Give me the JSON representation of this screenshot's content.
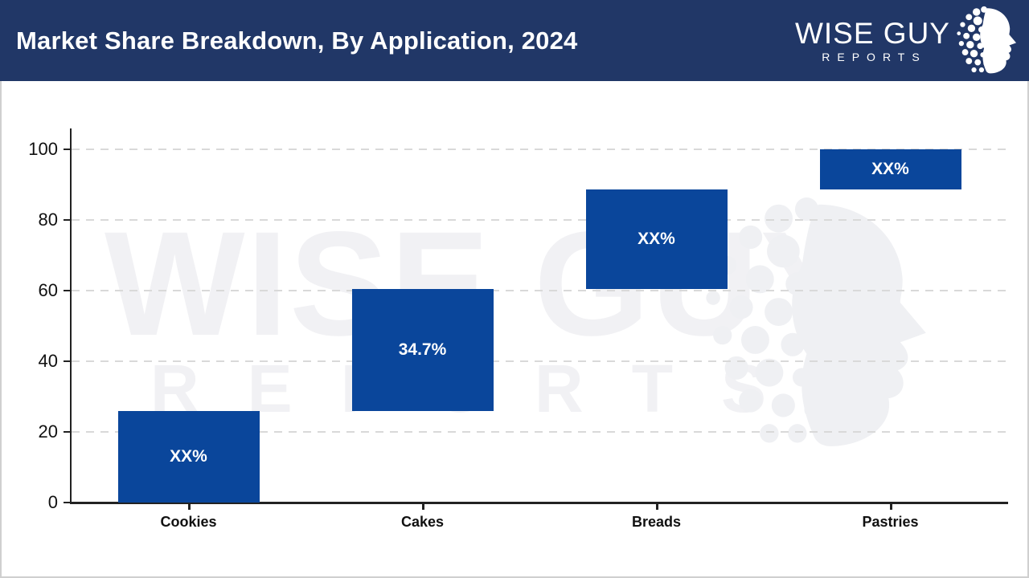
{
  "header": {
    "title": "Market Share Breakdown, By Application, 2024",
    "logo": {
      "line1": "WISE GUY",
      "line2": "REPORTS"
    }
  },
  "watermark": {
    "line1": "WISE GUY",
    "line2": "REPORTS"
  },
  "chart_data": {
    "type": "bar",
    "subtype": "waterfall",
    "title": "Market Share Breakdown, By Application, 2024",
    "categories": [
      "Cookies",
      "Cakes",
      "Breads",
      "Pastries"
    ],
    "segments": [
      {
        "category": "Cookies",
        "start": 0,
        "end": 25.8,
        "label": "XX%"
      },
      {
        "category": "Cakes",
        "start": 25.8,
        "end": 60.5,
        "label": "34.7%"
      },
      {
        "category": "Breads",
        "start": 60.5,
        "end": 88.6,
        "label": "XX%"
      },
      {
        "category": "Pastries",
        "start": 88.6,
        "end": 100,
        "label": "XX%"
      }
    ],
    "xlabel": "",
    "ylabel": "",
    "ylim": [
      0,
      100
    ],
    "yticks": [
      0,
      20,
      40,
      60,
      80,
      100
    ],
    "grid": "horizontal-dashed",
    "legend": "none",
    "bar_color": "#0a469b",
    "bar_label_color": "#ffffff",
    "axis_color": "#222222",
    "grid_color": "#d9d9d9",
    "header_bg": "#213767"
  }
}
